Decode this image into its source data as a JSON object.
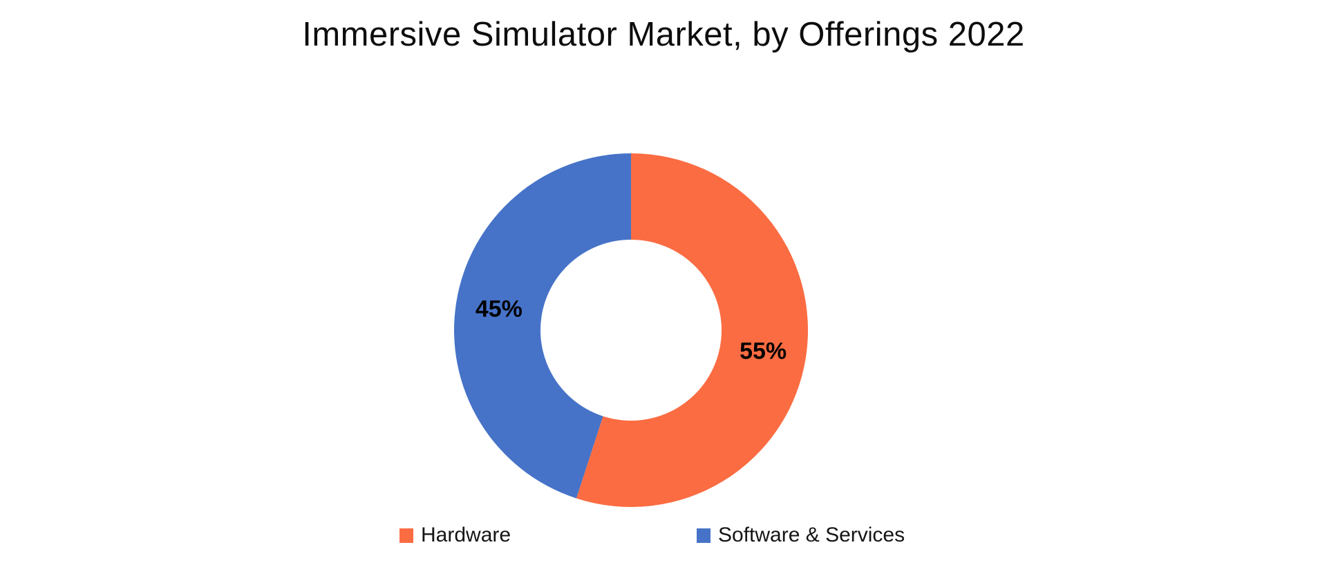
{
  "chart_data": {
    "type": "pie",
    "subtype": "donut",
    "title": "Immersive Simulator Market, by Offerings 2022",
    "categories": [
      "Hardware",
      "Software & Services"
    ],
    "values": [
      55,
      45
    ],
    "data_labels": [
      "55%",
      "45%"
    ],
    "colors": [
      "#FB6C42",
      "#4673C8"
    ],
    "label_color": "#000000",
    "title_color": "#0D0D0D",
    "background": "#FFFFFF",
    "start_angle_deg": 0,
    "direction": "clockwise",
    "inner_radius_ratio": 0.51,
    "legend_position": "bottom",
    "grid": false
  }
}
